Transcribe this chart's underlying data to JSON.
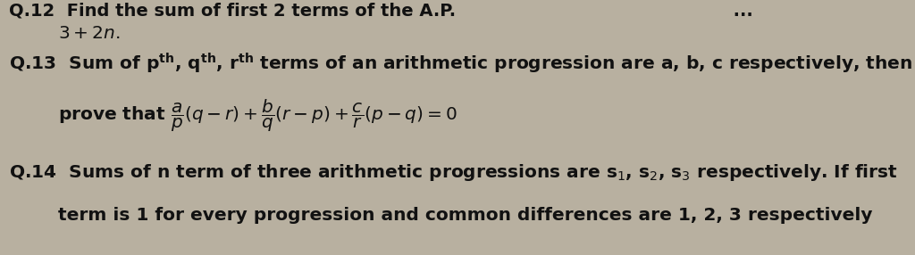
{
  "bg_color": "#b8b0a0",
  "text_color": "#111111",
  "figsize": [
    10.24,
    2.86
  ],
  "dpi": 100,
  "font_size": 14.5
}
